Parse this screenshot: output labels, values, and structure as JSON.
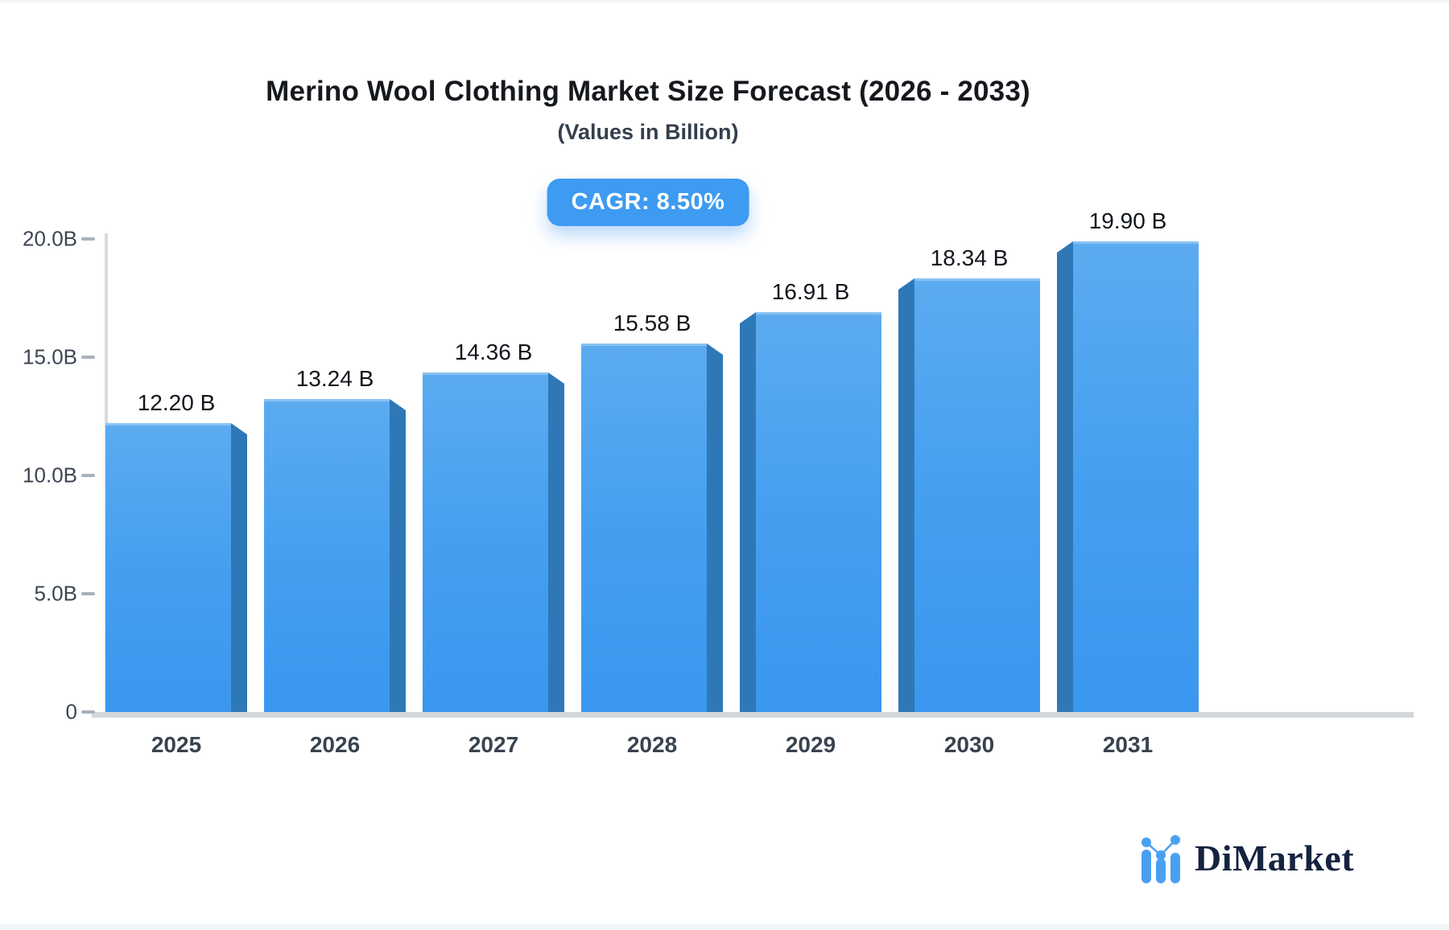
{
  "title": "Merino Wool Clothing Market Size Forecast (2026 - 2033)",
  "subtitle": "(Values in Billion)",
  "cagr_badge": "CAGR: 8.50%",
  "brand": {
    "name": "DiMarket"
  },
  "colors": {
    "badge_bg": "#3d9bf2",
    "bar_face_top": "#5cabf0",
    "bar_face_bottom": "#3a97ef",
    "bar_side": "#2e78b7",
    "axis_line": "#d8dbdf",
    "baseline": "#d3d6da",
    "tick_dash": "#a9b1ba",
    "brand_navy": "#15233f",
    "brand_blue": "#4aa0f0"
  },
  "chart_data": {
    "type": "bar",
    "title": "Merino Wool Clothing Market Size Forecast (2026 - 2033)",
    "subtitle": "(Values in Billion)",
    "annotation": "CAGR: 8.50%",
    "categories": [
      "2025",
      "2026",
      "2027",
      "2028",
      "2029",
      "2030",
      "2031"
    ],
    "values": [
      12.2,
      13.24,
      14.36,
      15.58,
      16.91,
      18.34,
      19.9
    ],
    "value_labels": [
      "12.20 B",
      "13.24 B",
      "14.36 B",
      "15.58 B",
      "16.91 B",
      "18.34 B",
      "19.90 B"
    ],
    "xlabel": "",
    "ylabel": "",
    "ylim": [
      0,
      20
    ],
    "yticks": [
      {
        "value": 20,
        "label": "20.0B"
      },
      {
        "value": 15,
        "label": "15.0B"
      },
      {
        "value": 10,
        "label": "10.0B"
      },
      {
        "value": 5,
        "label": "5.0B"
      },
      {
        "value": 0,
        "label": "0"
      }
    ],
    "grid": false,
    "legend_position": "none"
  }
}
